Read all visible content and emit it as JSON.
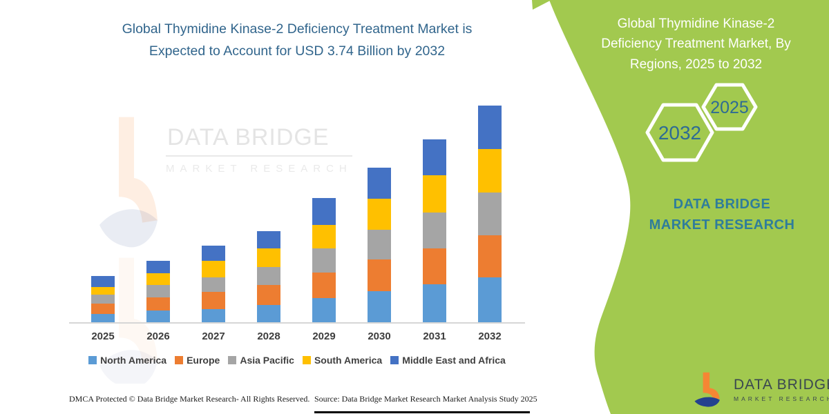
{
  "page": {
    "title_lines": [
      "Global Thymidine Kinase-2 Deficiency Treatment Market is",
      "Expected to Account for USD 3.74 Billion by 2032"
    ]
  },
  "chart_data": {
    "type": "bar",
    "stacked": true,
    "title": "Global Thymidine Kinase-2 Deficiency Treatment Market is Expected to Account for USD 3.74 Billion by 2032",
    "unit": "USD Billion",
    "categories": [
      "2025",
      "2026",
      "2027",
      "2028",
      "2029",
      "2030",
      "2031",
      "2032"
    ],
    "series": [
      {
        "name": "North America",
        "color": "#5B9BD5",
        "values": [
          0.14,
          0.2,
          0.23,
          0.3,
          0.42,
          0.54,
          0.66,
          0.77
        ]
      },
      {
        "name": "Europe",
        "color": "#ED7D31",
        "values": [
          0.18,
          0.23,
          0.29,
          0.34,
          0.44,
          0.54,
          0.62,
          0.73
        ]
      },
      {
        "name": "Asia Pacific",
        "color": "#A5A5A5",
        "values": [
          0.16,
          0.22,
          0.26,
          0.32,
          0.42,
          0.52,
          0.62,
          0.74
        ]
      },
      {
        "name": "South America",
        "color": "#FFC000",
        "values": [
          0.13,
          0.2,
          0.28,
          0.32,
          0.4,
          0.54,
          0.64,
          0.76
        ]
      },
      {
        "name": "Middle East and Africa",
        "color": "#4472C4",
        "values": [
          0.19,
          0.21,
          0.26,
          0.3,
          0.47,
          0.53,
          0.62,
          0.74
        ]
      }
    ],
    "ylim": [
      0,
      3.9
    ],
    "grid": false,
    "legend_position": "bottom"
  },
  "watermark": {
    "brand": "DATA BRIDGE",
    "sub": "MARKET RESEARCH"
  },
  "footer": {
    "dmca": "DMCA Protected © Data Bridge Market Research- All Rights Reserved.",
    "source": "Source: Data Bridge Market Research Market Analysis Study 2025"
  },
  "right_panel": {
    "title_lines": [
      "Global Thymidine Kinase-2",
      "Deficiency Treatment Market, By",
      "Regions, 2025 to 2032"
    ],
    "hexagon_years": [
      "2032",
      "2025"
    ],
    "brand_text": "DATA BRIDGE MARKET RESEARCH",
    "logo": {
      "name": "DATA BRIDGE",
      "sub": "MARKET RESEARCH"
    },
    "colors": {
      "panel_green": "#a2c94f",
      "teal_text": "#2f7d9b",
      "hex_year_text": "#2e6b94",
      "logo_orange": "#f58634",
      "logo_blue": "#24418e",
      "title_blue": "#31658c"
    }
  }
}
